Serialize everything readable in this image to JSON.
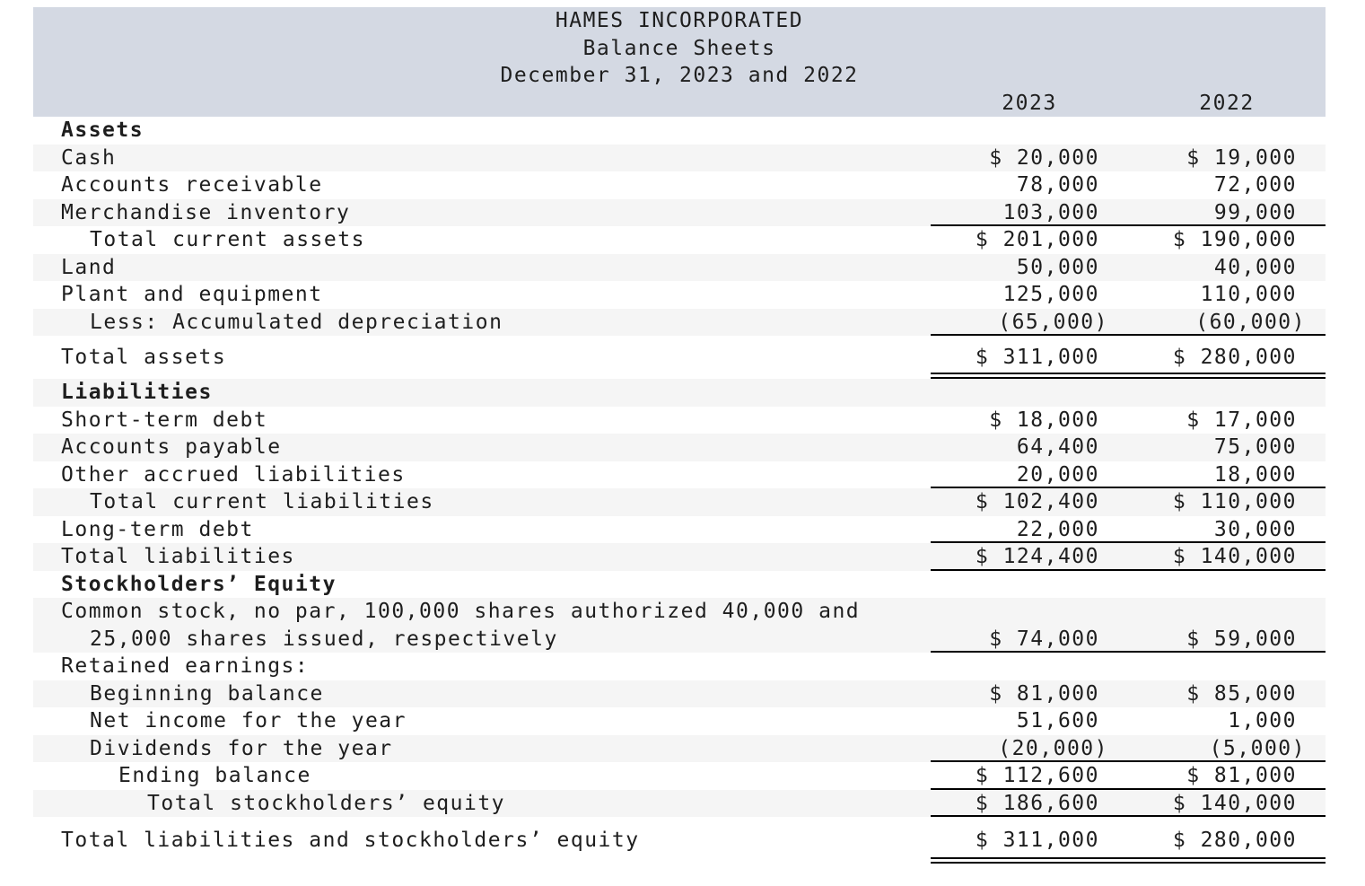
{
  "header": {
    "band_color": "#d4d9e3",
    "title_lines": {
      "company": "HAMES INCORPORATED",
      "report": "Balance Sheets",
      "date": "December 31, 2023 and 2022"
    },
    "col_years": [
      "2023",
      "2022"
    ]
  },
  "table": {
    "stripe_color": "#f5f5f5",
    "rule_color": "#000000",
    "rows": [
      {
        "label": "Assets",
        "bold": true,
        "indent": 0,
        "stripe": false
      },
      {
        "label": "Cash",
        "indent": 0,
        "v2023": "$ 20,000",
        "v2022": "$ 19,000",
        "stripe": true
      },
      {
        "label": "Accounts receivable",
        "indent": 0,
        "v2023": "78,000",
        "v2022": "72,000",
        "stripe": false
      },
      {
        "label": "Merchandise inventory",
        "indent": 0,
        "v2023": "103,000",
        "v2022": "99,000",
        "stripe": true,
        "underline": "single"
      },
      {
        "label": "Total current assets",
        "indent": 1,
        "v2023": "$ 201,000",
        "v2022": "$ 190,000",
        "stripe": false
      },
      {
        "label": "Land",
        "indent": 0,
        "v2023": "50,000",
        "v2022": "40,000",
        "stripe": true
      },
      {
        "label": "Plant and equipment",
        "indent": 0,
        "v2023": "125,000",
        "v2022": "110,000",
        "stripe": false
      },
      {
        "label": "Less: Accumulated depreciation",
        "indent": 1,
        "v2023": "(65,000)",
        "v2022": "(60,000)",
        "neg": true,
        "stripe": true,
        "underline": "single"
      },
      {
        "label": "Total assets",
        "indent": 0,
        "v2023": "$ 311,000",
        "v2022": "$ 280,000",
        "stripe": false,
        "underline": "double",
        "size": "tall"
      },
      {
        "label": "Liabilities",
        "bold": true,
        "indent": 0,
        "stripe": true
      },
      {
        "label": "Short-term debt",
        "indent": 0,
        "v2023": "$ 18,000",
        "v2022": "$ 17,000",
        "stripe": false
      },
      {
        "label": "Accounts payable",
        "indent": 0,
        "v2023": "64,400",
        "v2022": "75,000",
        "stripe": true
      },
      {
        "label": "Other accrued liabilities",
        "indent": 0,
        "v2023": "20,000",
        "v2022": "18,000",
        "stripe": false,
        "underline": "single"
      },
      {
        "label": "Total current liabilities",
        "indent": 1,
        "v2023": "$ 102,400",
        "v2022": "$ 110,000",
        "stripe": true
      },
      {
        "label": "Long-term debt",
        "indent": 0,
        "v2023": "22,000",
        "v2022": "30,000",
        "stripe": false,
        "underline": "single"
      },
      {
        "label": "Total liabilities",
        "indent": 0,
        "v2023": "$ 124,400",
        "v2022": "$ 140,000",
        "stripe": true,
        "underline": "single"
      },
      {
        "label": "Stockholders’ Equity",
        "bold": true,
        "indent": 0,
        "stripe": false
      },
      {
        "label": "Common stock, no par, 100,000 shares authorized 40,000 and",
        "indent": 0,
        "stripe": true
      },
      {
        "label": "25,000 shares issued, respectively",
        "indent": 1,
        "v2023": "$ 74,000",
        "v2022": "$ 59,000",
        "stripe": true,
        "underline": "single"
      },
      {
        "label": "Retained earnings:",
        "indent": 0,
        "stripe": false
      },
      {
        "label": "Beginning balance",
        "indent": 1,
        "v2023": "$ 81,000",
        "v2022": "$ 85,000",
        "stripe": true
      },
      {
        "label": "Net income for the year",
        "indent": 1,
        "v2023": "51,600",
        "v2022": "1,000",
        "stripe": false
      },
      {
        "label": "Dividends for the year",
        "indent": 1,
        "v2023": "(20,000)",
        "v2022": "(5,000)",
        "neg": true,
        "stripe": true,
        "underline": "single"
      },
      {
        "label": "Ending balance",
        "indent": 2,
        "v2023": "$ 112,600",
        "v2022": "$ 81,000",
        "stripe": false,
        "underline": "single"
      },
      {
        "label": "Total stockholders’ equity",
        "indent": 3,
        "v2023": "$ 186,600",
        "v2022": "$ 140,000",
        "stripe": true,
        "underline": "single"
      },
      {
        "label": "Total liabilities and stockholders’ equity",
        "indent": 0,
        "v2023": "$ 311,000",
        "v2022": "$ 280,000",
        "stripe": false,
        "underline": "double",
        "size": "tall2"
      }
    ]
  }
}
